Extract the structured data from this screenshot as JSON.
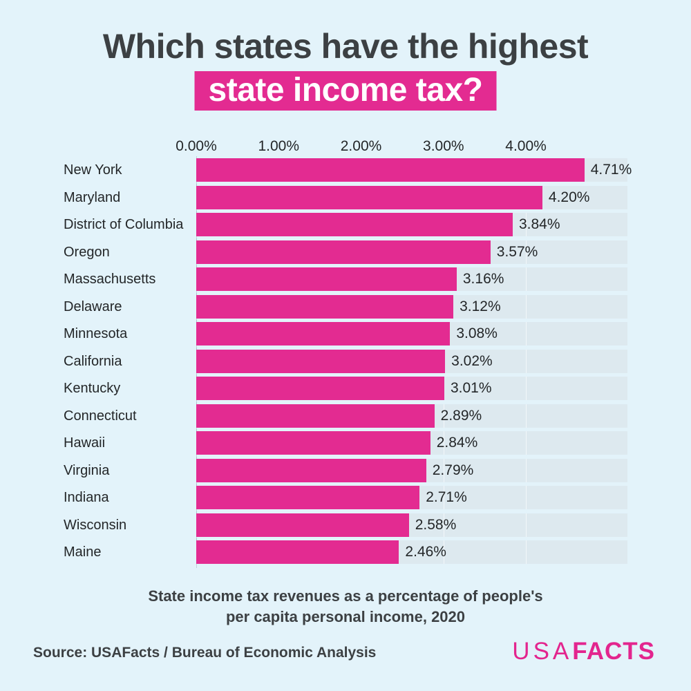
{
  "title": {
    "line1": "Which states have the highest",
    "line2": "state income tax?"
  },
  "chart_data": {
    "type": "bar",
    "orientation": "horizontal",
    "categories": [
      "New York",
      "Maryland",
      "District of Columbia",
      "Oregon",
      "Massachusetts",
      "Delaware",
      "Minnesota",
      "California",
      "Kentucky",
      "Connecticut",
      "Hawaii",
      "Virginia",
      "Indiana",
      "Wisconsin",
      "Maine"
    ],
    "values": [
      4.71,
      4.2,
      3.84,
      3.57,
      3.16,
      3.12,
      3.08,
      3.02,
      3.01,
      2.89,
      2.84,
      2.79,
      2.71,
      2.58,
      2.46
    ],
    "value_labels": [
      "4.71%",
      "4.20%",
      "3.84%",
      "3.57%",
      "3.16%",
      "3.12%",
      "3.08%",
      "3.02%",
      "3.01%",
      "2.89%",
      "2.84%",
      "2.79%",
      "2.71%",
      "2.58%",
      "2.46%"
    ],
    "x_ticks": [
      "0.00%",
      "1.00%",
      "2.00%",
      "3.00%",
      "4.00%"
    ],
    "x_tick_values": [
      0,
      1,
      2,
      3,
      4
    ],
    "gridline_values": [
      1,
      2,
      3,
      4
    ],
    "axis_max": 5.232,
    "xlabel": "",
    "ylabel": "",
    "legend": "none",
    "grid": "vertical-white-lines"
  },
  "caption": {
    "line1": "State income tax revenues as a percentage of people's",
    "line2": "per capita personal income, 2020"
  },
  "footer": {
    "source": "Source: USAFacts / Bureau of Economic Analysis",
    "logo_usa": "USA",
    "logo_facts": "FACTS"
  },
  "colors": {
    "background": "#E3F3FA",
    "accent_pink": "#E32B91",
    "bar_track": "#DDE9EF",
    "dark_text": "#232628",
    "gray_text": "#3C4043",
    "logo_pink": "#E3258E"
  }
}
